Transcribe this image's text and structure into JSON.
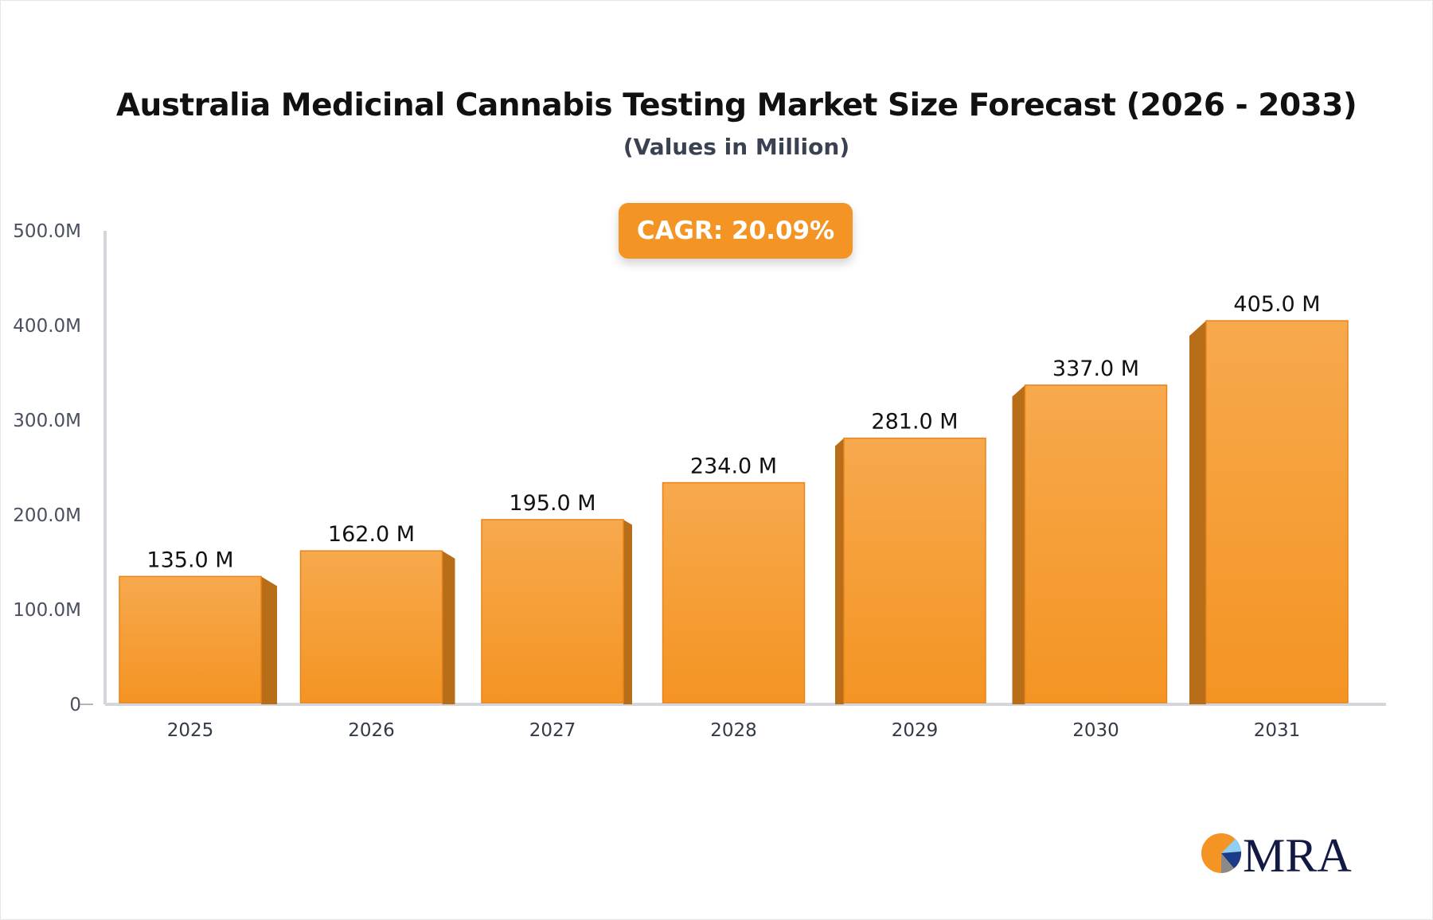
{
  "chart_data": {
    "type": "bar",
    "title": "Australia Medicinal Cannabis Testing Market Size Forecast (2026 - 2033)",
    "subtitle": "(Values in Million)",
    "categories": [
      "2025",
      "2026",
      "2027",
      "2028",
      "2029",
      "2030",
      "2031"
    ],
    "values": [
      135.0,
      162.0,
      195.0,
      234.0,
      281.0,
      337.0,
      405.0
    ],
    "data_labels": [
      "135.0 M",
      "162.0 M",
      "195.0 M",
      "234.0 M",
      "281.0 M",
      "337.0 M",
      "405.0 M"
    ],
    "ylim": [
      0,
      500
    ],
    "yticks": [
      0,
      100,
      200,
      300,
      400,
      500
    ],
    "ytick_labels": [
      "0",
      "100.0M",
      "200.0M",
      "300.0M",
      "400.0M",
      "500.0M"
    ],
    "xlabel": "",
    "ylabel": "",
    "grid": false,
    "bar_color": "#f49425",
    "annotation": "CAGR: 20.09%"
  },
  "logo": {
    "text": "MRA"
  }
}
